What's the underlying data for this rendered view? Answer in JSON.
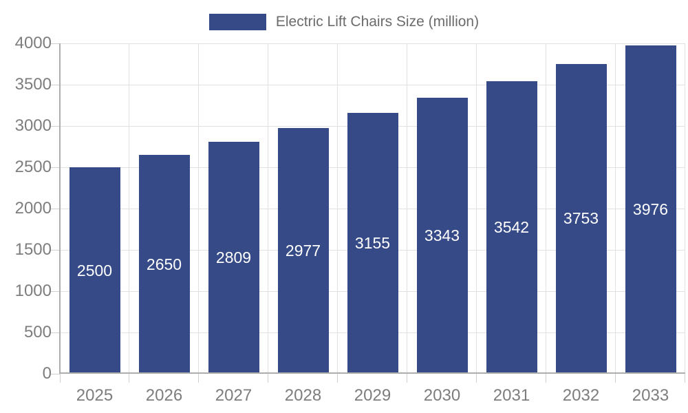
{
  "page": {
    "background": "#ffffff"
  },
  "chart_data": {
    "type": "bar",
    "title": "Electric Lift Chairs Size (million)",
    "categories": [
      "2025",
      "2026",
      "2027",
      "2028",
      "2029",
      "2030",
      "2031",
      "2032",
      "2033"
    ],
    "values": [
      2500,
      2650,
      2809,
      2977,
      3155,
      3343,
      3542,
      3753,
      3976
    ],
    "series": [
      {
        "name": "Electric Lift Chairs Size (million)",
        "values": [
          2500,
          2650,
          2809,
          2977,
          3155,
          3343,
          3542,
          3753,
          3976
        ]
      }
    ],
    "xlabel": "",
    "ylabel": "",
    "ylim": [
      0,
      4000
    ],
    "ytick_step": 500,
    "ytick_labels": [
      "0",
      "500",
      "1000",
      "1500",
      "2000",
      "2500",
      "3000",
      "3500",
      "4000"
    ],
    "grid": true,
    "legend_position": "top",
    "value_labels": "inside-center",
    "colors": {
      "bar": "#364a87",
      "grid": "#e0e0e0",
      "axis": "#adadad",
      "tick": "#cfcfcf",
      "axis_label": "#7d7d7d",
      "bar_label": "#ffffff",
      "legend_text": "#6b6b6b",
      "background": "#ffffff"
    }
  }
}
